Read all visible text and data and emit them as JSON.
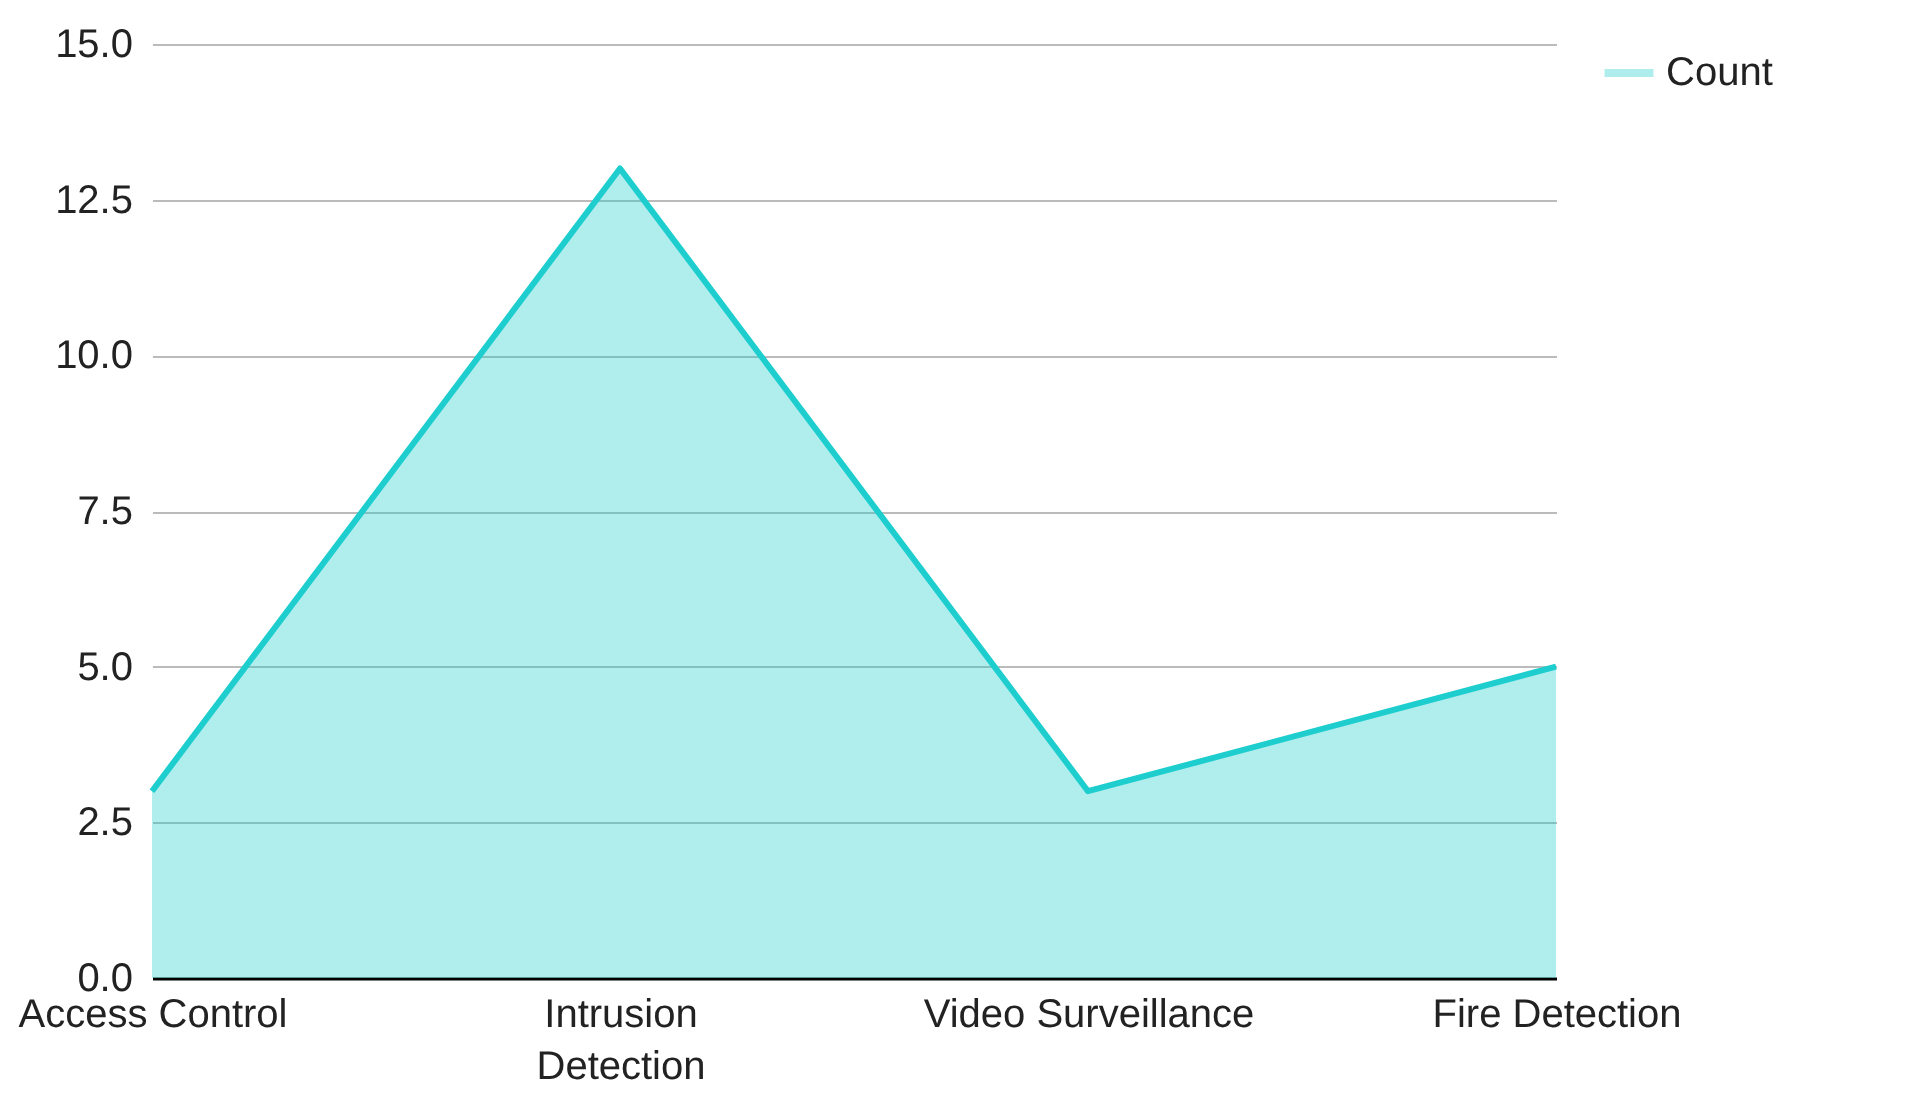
{
  "chart_data": {
    "type": "area",
    "categories": [
      "Access Control",
      "Intrusion Detection",
      "Video Surveillance",
      "Fire Detection"
    ],
    "series": [
      {
        "name": "Count",
        "color": "#1ecdcd",
        "values": [
          3,
          13,
          3,
          5
        ]
      }
    ],
    "ylim": [
      0,
      15
    ],
    "yticks": [
      {
        "value": 0,
        "label": "0.0"
      },
      2.5,
      {
        "value": 5,
        "label": "5.0"
      },
      7.5,
      {
        "value": 10,
        "label": "10.0"
      },
      12.5,
      {
        "value": 15,
        "label": "15.0"
      }
    ],
    "grid": "y",
    "legend": "top right"
  }
}
